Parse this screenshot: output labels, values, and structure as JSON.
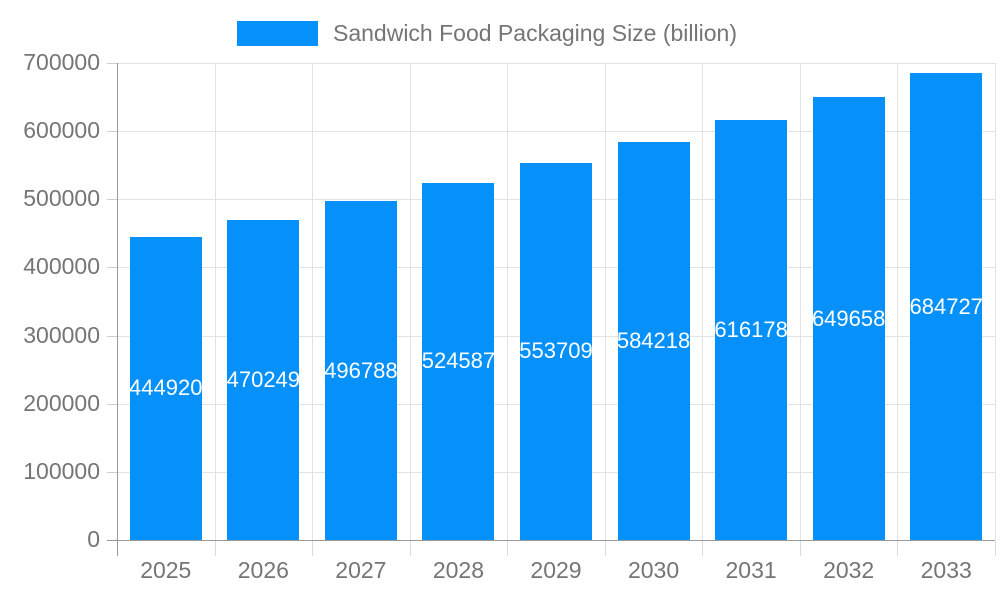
{
  "chart_data": {
    "type": "bar",
    "title": "Sandwich Food Packaging Size (billion)",
    "categories": [
      "2025",
      "2026",
      "2027",
      "2028",
      "2029",
      "2030",
      "2031",
      "2032",
      "2033"
    ],
    "series": [
      {
        "name": "Sandwich Food Packaging Size (billion)",
        "values": [
          444920,
          470249,
          496788,
          524587,
          553709,
          584218,
          616178,
          649658,
          684727
        ],
        "color": "#0590fa"
      }
    ],
    "xlabel": "",
    "ylabel": "",
    "ylim": [
      0,
      700000
    ],
    "ytick_interval": 100000,
    "ytick_labels": [
      "0",
      "100000",
      "200000",
      "300000",
      "400000",
      "500000",
      "600000",
      "700000"
    ],
    "bar_value_labels_visible": true,
    "grid": true,
    "legend_position": "top",
    "colors": {
      "bar": "#0590fa",
      "bar_label": "#ffffff",
      "axis_text": "#757575",
      "axis_line": "#999999",
      "grid_line": "#e3e3e3",
      "tick_line": "#d9d9d9",
      "background": "#ffffff"
    }
  }
}
